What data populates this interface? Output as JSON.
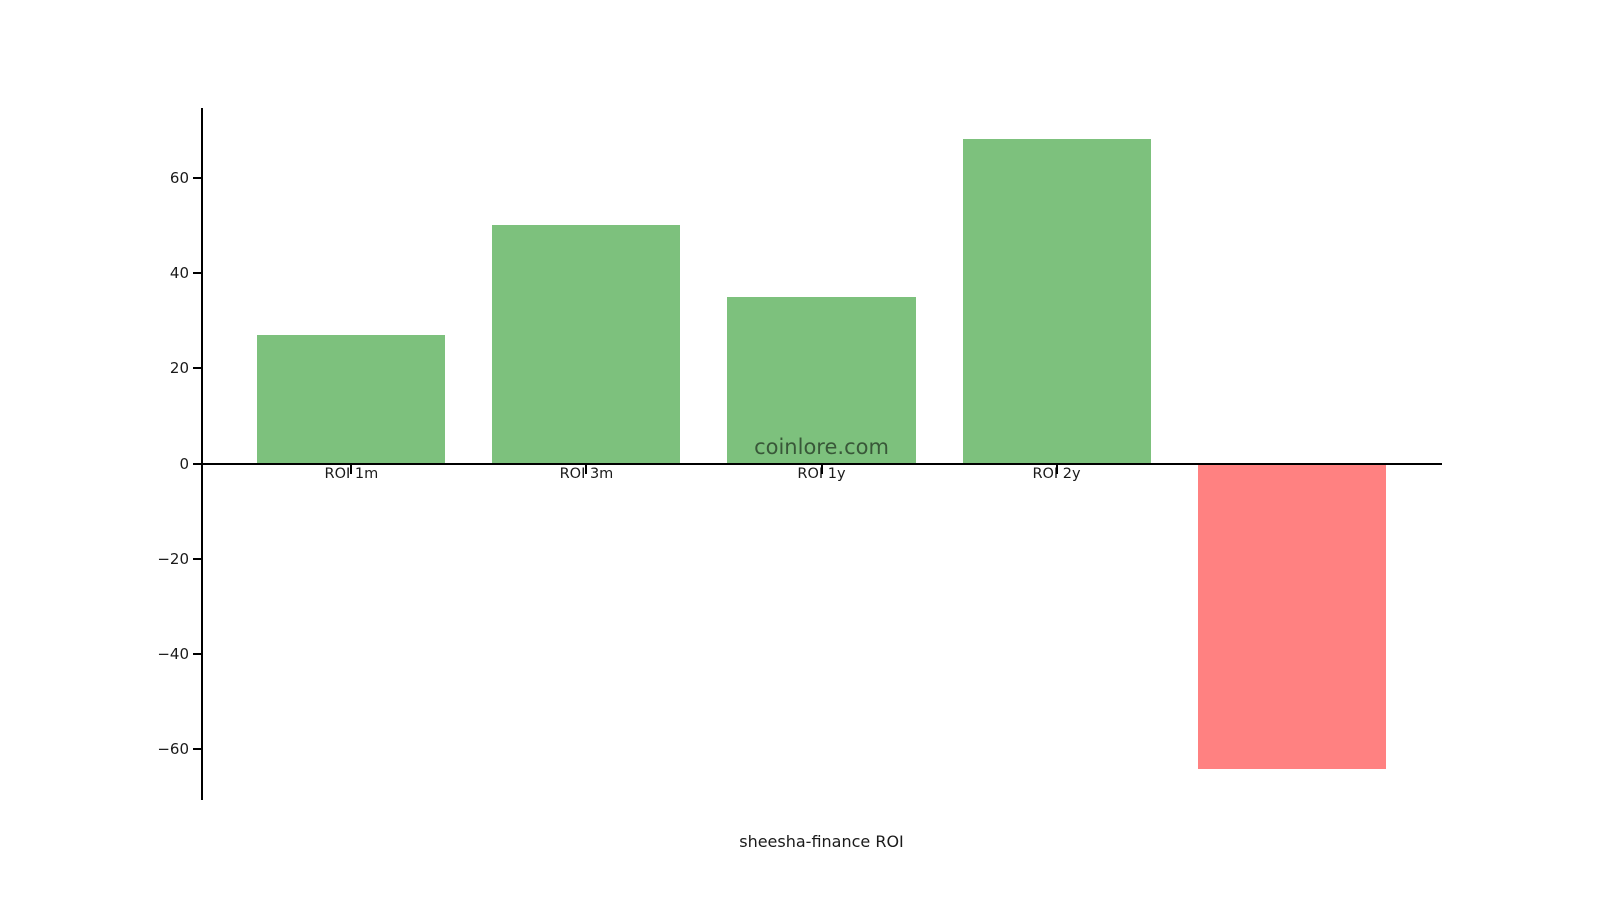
{
  "figure": {
    "background": "#ffffff"
  },
  "chart_data": {
    "type": "bar",
    "title": "sheesha-finance ROI",
    "watermark": "coinlore.com",
    "categories": [
      "ROI 1m",
      "ROI 3m",
      "ROI 1y",
      "ROI 2y",
      ""
    ],
    "values": [
      27,
      50,
      35,
      68,
      -64
    ],
    "bar_colors": [
      "#7dc17d",
      "#7dc17d",
      "#7dc17d",
      "#7dc17d",
      "#ff8181"
    ],
    "positive_color": "#7dc17d",
    "negative_color": "#ff8181",
    "bar_width_fraction": 0.8,
    "xlabel": "",
    "ylabel": "",
    "ylim": [
      -70.6,
      74.6
    ],
    "yticks": [
      60,
      40,
      20,
      0,
      -20,
      -40,
      -60
    ],
    "ytick_labels": [
      "60",
      "40",
      "20",
      "0",
      "−20",
      "−40",
      "−60"
    ],
    "xticks_shown_for": [
      0,
      1,
      2,
      3
    ],
    "grid": false,
    "legend": null,
    "axis_color": "#000000",
    "text_color": "#1a1a1a"
  }
}
